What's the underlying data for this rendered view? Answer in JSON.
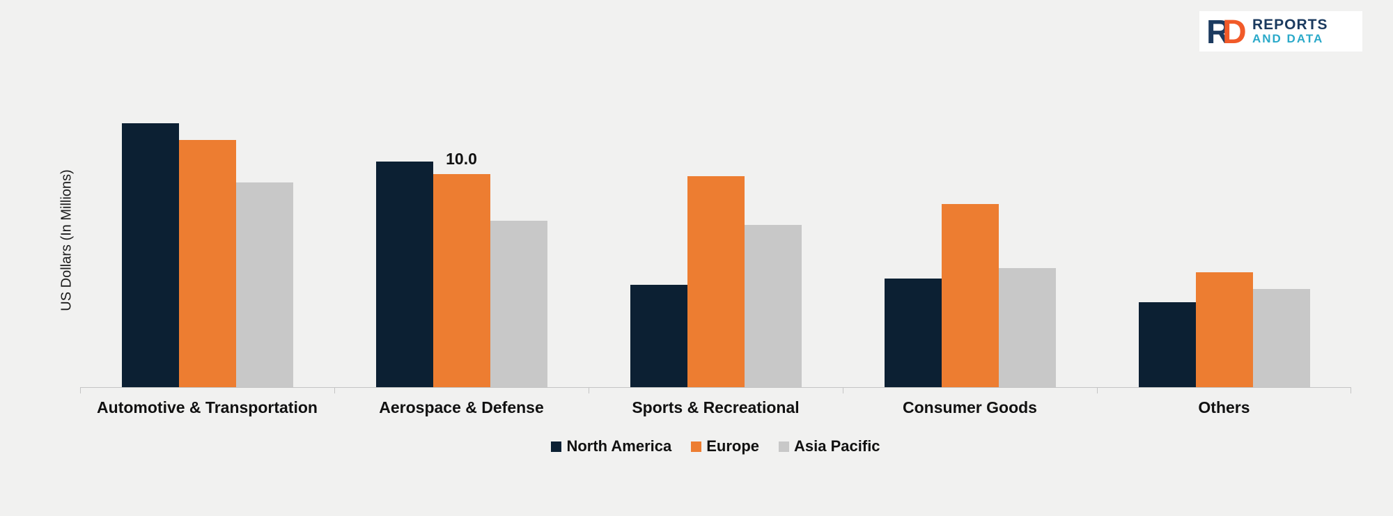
{
  "page": {
    "background": "#f1f1f0"
  },
  "logo": {
    "monogram_r": "R",
    "monogram_d": "D",
    "line1": "REPORTS",
    "line2": "AND DATA",
    "navy": "#1b3a5f",
    "orange": "#f15a29",
    "teal": "#2aa9c9"
  },
  "chart_data": {
    "type": "bar",
    "title": "",
    "xlabel": "",
    "ylabel": "US Dollars (In Millions)",
    "ylim": [
      0,
      13
    ],
    "grid": false,
    "y_axis_ticks_visible": false,
    "legend_position": "bottom",
    "categories": [
      "Automotive & Transportation",
      "Aerospace & Defense",
      "Sports & Recreational",
      "Consumer Goods",
      "Others"
    ],
    "series": [
      {
        "name": "North America",
        "color": "#0c2033",
        "values": [
          12.4,
          10.6,
          4.8,
          5.1,
          4.0
        ]
      },
      {
        "name": "Europe",
        "color": "#ed7d31",
        "values": [
          11.6,
          10.0,
          9.9,
          8.6,
          5.4
        ]
      },
      {
        "name": "Asia Pacific",
        "color": "#c8c8c8",
        "values": [
          9.6,
          7.8,
          7.6,
          5.6,
          4.6
        ]
      }
    ],
    "annotations": [
      {
        "category_index": 1,
        "series_index": 1,
        "text": "10.0"
      }
    ]
  }
}
